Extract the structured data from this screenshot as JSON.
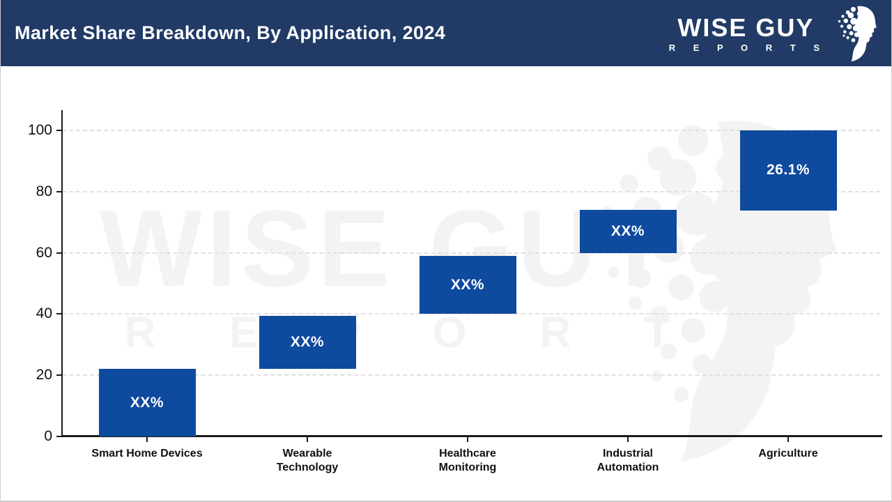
{
  "header": {
    "title": "Market Share Breakdown, By Application, 2024",
    "logo": {
      "line1": "WISE GUY",
      "line2": "R E P O R T S"
    }
  },
  "watermark": {
    "line1": "WISE GUY",
    "line2": "R E P O R T S"
  },
  "chart_data": {
    "type": "bar",
    "subtype": "waterfall",
    "title": "Market Share Breakdown, By Application, 2024",
    "categories": [
      "Smart Home Devices",
      "Wearable Technology",
      "Healthcare Monitoring",
      "Industrial Automation",
      "Agriculture"
    ],
    "segments": [
      {
        "category": "Smart Home Devices",
        "label_lines": [
          "Smart Home Devices"
        ],
        "start": 0,
        "end": 22,
        "value_label": "XX%"
      },
      {
        "category": "Wearable Technology",
        "label_lines": [
          "Wearable",
          "Technology"
        ],
        "start": 22,
        "end": 39.5,
        "value_label": "XX%"
      },
      {
        "category": "Healthcare Monitoring",
        "label_lines": [
          "Healthcare",
          "Monitoring"
        ],
        "start": 40,
        "end": 59,
        "value_label": "XX%"
      },
      {
        "category": "Industrial Automation",
        "label_lines": [
          "Industrial",
          "Automation"
        ],
        "start": 60,
        "end": 74,
        "value_label": "XX%"
      },
      {
        "category": "Agriculture",
        "label_lines": [
          "Agriculture"
        ],
        "start": 73.9,
        "end": 100,
        "value_label": "26.1%"
      }
    ],
    "yticks": [
      0,
      20,
      40,
      60,
      80,
      100
    ],
    "ylim": [
      0,
      100
    ],
    "xlabel": "",
    "ylabel": "",
    "legend": "none",
    "grid": "horizontal-dashed",
    "bar_color": "#0e4a9e",
    "bar_label_color": "#ffffff",
    "axis_color": "#1a1a1a",
    "grid_color": "#e0e0e0",
    "header_color": "#213a66",
    "watermark_color": "#f3f3f3"
  }
}
